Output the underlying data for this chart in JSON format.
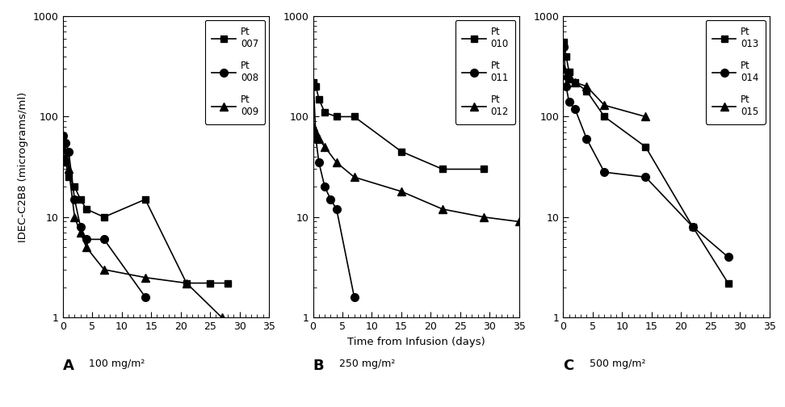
{
  "panels": [
    {
      "label": "A",
      "dose": "100 mg/m²",
      "series": [
        {
          "name": "Pt\n007",
          "marker": "s",
          "x": [
            0.1,
            0.5,
            1,
            2,
            3,
            4,
            7,
            14,
            21,
            25,
            28
          ],
          "y": [
            55,
            35,
            25,
            20,
            15,
            12,
            10,
            15,
            2.2,
            2.2,
            2.2
          ]
        },
        {
          "name": "Pt\n008",
          "marker": "o",
          "x": [
            0.1,
            0.5,
            1,
            2,
            3,
            4,
            7,
            14
          ],
          "y": [
            65,
            55,
            45,
            15,
            8,
            6,
            6,
            1.6
          ]
        },
        {
          "name": "Pt\n009",
          "marker": "^",
          "x": [
            0.1,
            0.5,
            1,
            2,
            3,
            4,
            7,
            14,
            21,
            27
          ],
          "y": [
            50,
            40,
            30,
            10,
            7,
            5,
            3,
            2.5,
            2.2,
            1.0
          ]
        }
      ]
    },
    {
      "label": "B",
      "dose": "250 mg/m²",
      "series": [
        {
          "name": "Pt\n010",
          "marker": "s",
          "x": [
            0.1,
            0.5,
            1,
            2,
            4,
            7,
            15,
            22,
            29
          ],
          "y": [
            220,
            200,
            150,
            110,
            100,
            100,
            45,
            30,
            30
          ]
        },
        {
          "name": "Pt\n011",
          "marker": "o",
          "x": [
            0.1,
            0.5,
            1,
            2,
            3,
            4,
            7
          ],
          "y": [
            200,
            60,
            35,
            20,
            15,
            12,
            1.6
          ]
        },
        {
          "name": "Pt\n012",
          "marker": "^",
          "x": [
            0.1,
            0.5,
            1,
            2,
            4,
            7,
            15,
            22,
            29,
            35
          ],
          "y": [
            80,
            70,
            60,
            50,
            35,
            25,
            18,
            12,
            10,
            9
          ]
        }
      ]
    },
    {
      "label": "C",
      "dose": "500 mg/m²",
      "series": [
        {
          "name": "Pt\n013",
          "marker": "s",
          "x": [
            0.1,
            0.5,
            1,
            2,
            4,
            7,
            14,
            22,
            28
          ],
          "y": [
            550,
            400,
            280,
            220,
            180,
            100,
            50,
            8,
            2.2
          ]
        },
        {
          "name": "Pt\n014",
          "marker": "o",
          "x": [
            0.1,
            0.5,
            1,
            2,
            4,
            7,
            14,
            22,
            28
          ],
          "y": [
            500,
            200,
            140,
            120,
            60,
            28,
            25,
            8,
            4
          ]
        },
        {
          "name": "Pt\n015",
          "marker": "^",
          "x": [
            0.1,
            0.5,
            1,
            2,
            4,
            7,
            14
          ],
          "y": [
            300,
            260,
            240,
            220,
            200,
            130,
            100
          ]
        }
      ]
    }
  ],
  "ylabel": "IDEC-C2B8 (micrograms/ml)",
  "xlabel": "Time from Infusion (days)",
  "ylim": [
    1,
    1000
  ],
  "xlim": [
    0,
    35
  ],
  "xticks": [
    0,
    5,
    10,
    15,
    20,
    25,
    30,
    35
  ],
  "yticks": [
    1,
    10,
    100,
    1000
  ]
}
